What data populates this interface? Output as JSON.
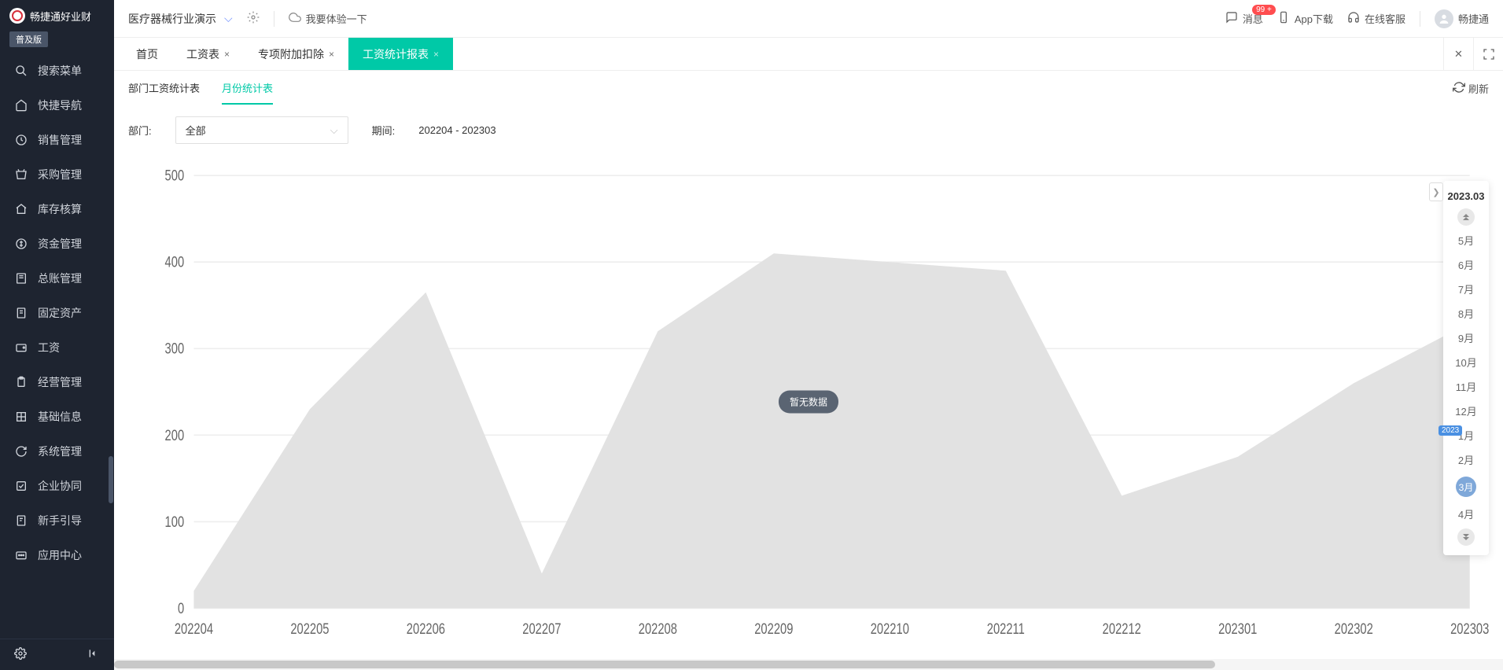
{
  "brand": {
    "name": "畅捷通好业财",
    "edition": "普及版"
  },
  "sidebar": {
    "items": [
      {
        "label": "搜索菜单",
        "icon": "search"
      },
      {
        "label": "快捷导航",
        "icon": "home"
      },
      {
        "label": "销售管理",
        "icon": "tag"
      },
      {
        "label": "采购管理",
        "icon": "bag"
      },
      {
        "label": "库存核算",
        "icon": "house"
      },
      {
        "label": "资金管理",
        "icon": "coin"
      },
      {
        "label": "总账管理",
        "icon": "book"
      },
      {
        "label": "固定资产",
        "icon": "doc"
      },
      {
        "label": "工资",
        "icon": "wallet"
      },
      {
        "label": "经营管理",
        "icon": "clip"
      },
      {
        "label": "基础信息",
        "icon": "grid"
      },
      {
        "label": "系统管理",
        "icon": "refresh"
      },
      {
        "label": "企业协同",
        "icon": "share"
      },
      {
        "label": "新手引导",
        "icon": "guide"
      },
      {
        "label": "应用中心",
        "icon": "apps"
      }
    ]
  },
  "topbar": {
    "org": "医疗器械行业演示",
    "experience": "我要体验一下",
    "msg_label": "消息",
    "msg_badge": "99 +",
    "app_label": "App下载",
    "service_label": "在线客服",
    "user": "畅捷通"
  },
  "tabs": [
    {
      "label": "首页",
      "closable": false,
      "active": false
    },
    {
      "label": "工资表",
      "closable": true,
      "active": false
    },
    {
      "label": "专项附加扣除",
      "closable": true,
      "active": false
    },
    {
      "label": "工资统计报表",
      "closable": true,
      "active": true
    }
  ],
  "subtabs": {
    "dept": "部门工资统计表",
    "month": "月份统计表",
    "refresh": "刷新"
  },
  "filters": {
    "dept_label": "部门:",
    "dept_value": "全部",
    "period_label": "期间:",
    "period_value": "202204 - 202303"
  },
  "chart": {
    "type": "area",
    "no_data_text": "暂无数据",
    "ylim": [
      0,
      500
    ],
    "ytick_step": 100,
    "yticks": [
      0,
      100,
      200,
      300,
      400,
      500
    ],
    "categories": [
      "202204",
      "202205",
      "202206",
      "202207",
      "202208",
      "202209",
      "202210",
      "202211",
      "202212",
      "202301",
      "202302",
      "202303"
    ],
    "values": [
      20,
      230,
      365,
      40,
      320,
      410,
      400,
      390,
      130,
      175,
      260,
      330
    ],
    "area_color": "#e2e2e2",
    "grid_color": "#eeeeee",
    "axis_font": 12,
    "axis_color": "#666666",
    "background": "#ffffff"
  },
  "period_panel": {
    "current": "2023.03",
    "year_badge": "2023",
    "months": [
      {
        "label": "5月",
        "selected": false
      },
      {
        "label": "6月",
        "selected": false
      },
      {
        "label": "7月",
        "selected": false
      },
      {
        "label": "8月",
        "selected": false
      },
      {
        "label": "9月",
        "selected": false
      },
      {
        "label": "10月",
        "selected": false
      },
      {
        "label": "11月",
        "selected": false
      },
      {
        "label": "12月",
        "selected": false
      },
      {
        "label": "1月",
        "selected": false,
        "year_start": true
      },
      {
        "label": "2月",
        "selected": false
      },
      {
        "label": "3月",
        "selected": true
      },
      {
        "label": "4月",
        "selected": false
      }
    ]
  }
}
